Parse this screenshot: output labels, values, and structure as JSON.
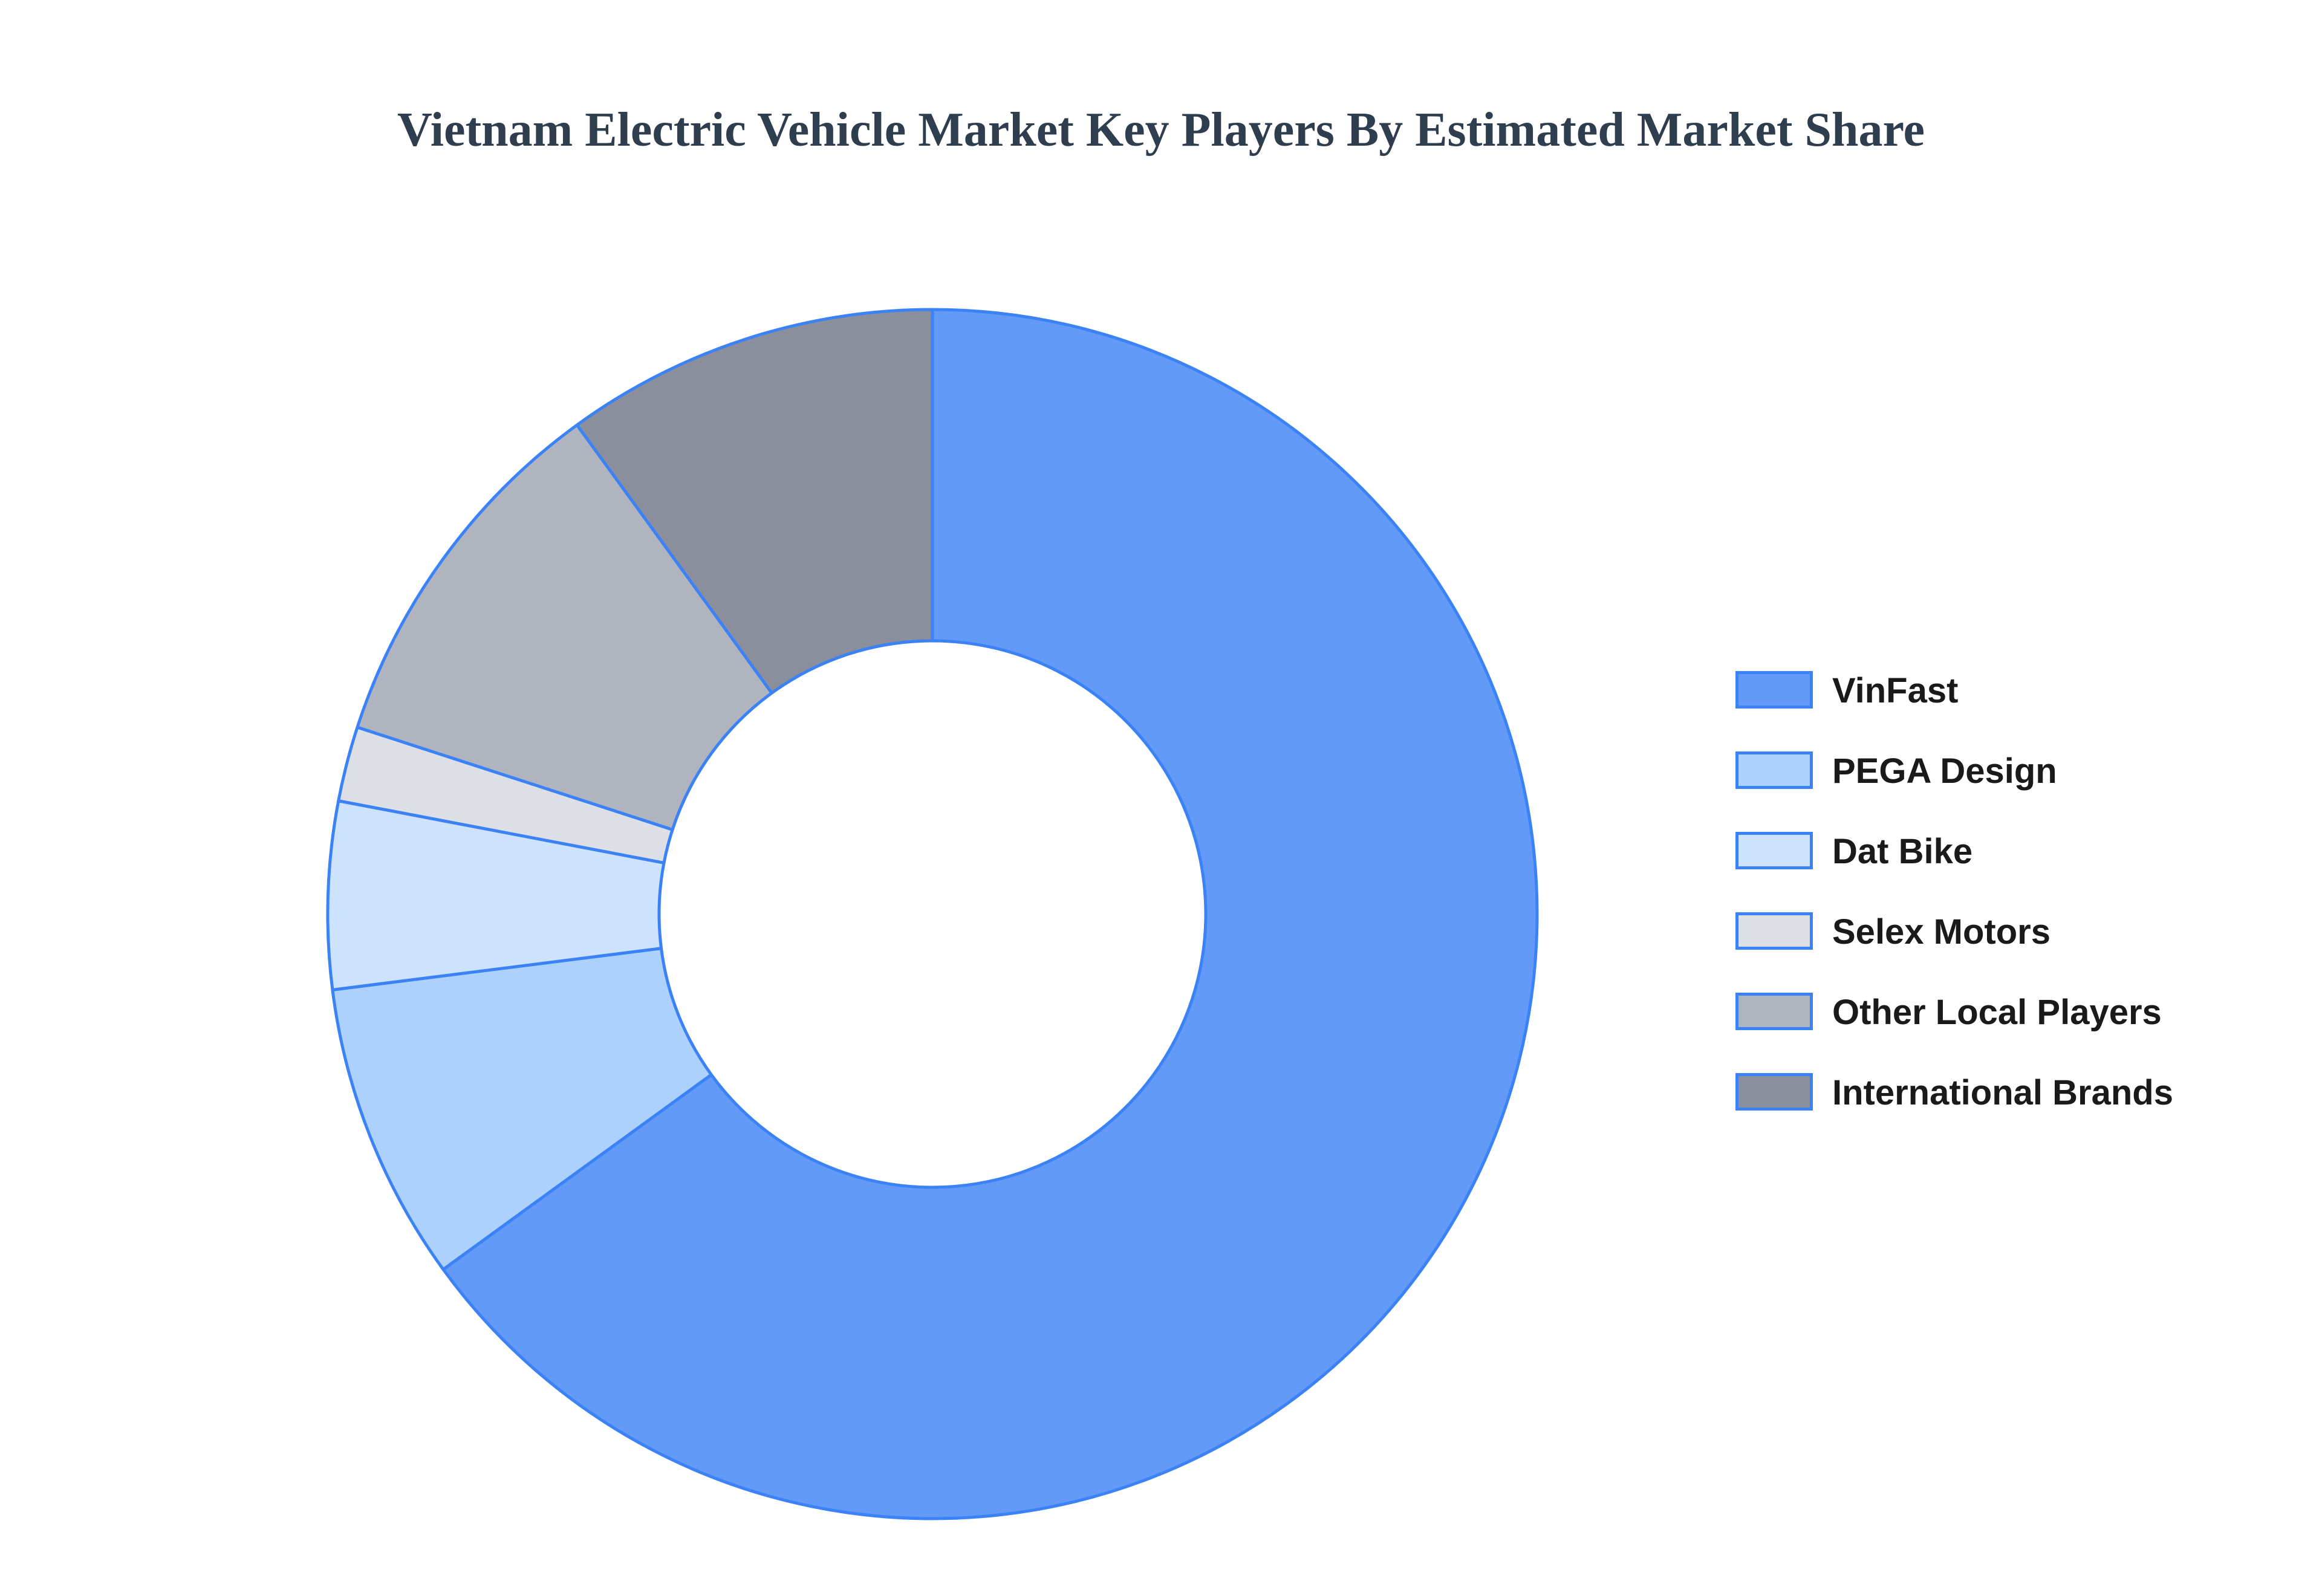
{
  "chart_data": {
    "type": "pie",
    "donut": true,
    "title": "Vietnam Electric Vehicle Market Key Players By Estimated Market Share",
    "categories": [
      "VinFast",
      "PEGA Design",
      "Dat Bike",
      "Selex Motors",
      "Other Local Players",
      "International Brands"
    ],
    "values": [
      65,
      8,
      5,
      2,
      10,
      10
    ],
    "colors": [
      "#6399f7",
      "#abd1fc",
      "#cde2fc",
      "#dcdfe5",
      "#b0b4bf",
      "#8b8f9b"
    ],
    "border_color": "#3b82f6",
    "legend_position": "right",
    "grid": false
  }
}
